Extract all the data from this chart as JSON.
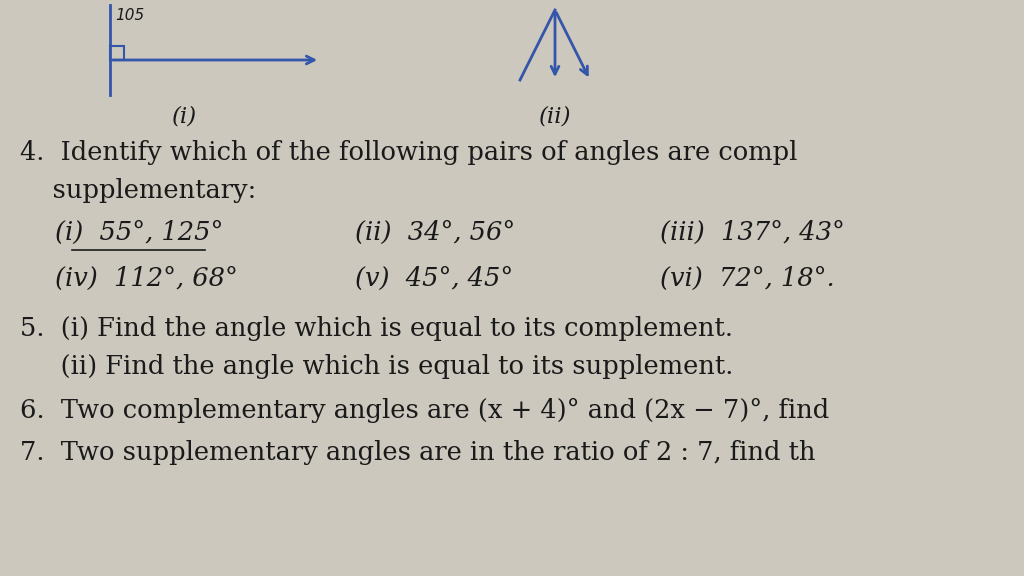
{
  "bg_color": "#ccc8be",
  "text_color": "#1a1a1a",
  "blue_color": "#3355aa",
  "fig_width": 10.24,
  "fig_height": 5.76,
  "label_i": "(i)",
  "label_ii": "(ii)",
  "q4_line1": "4.  Identify which of the following pairs of angles are compl",
  "q4_line2": "    supplementary:",
  "q4_col1_row1": "(i)  55°, 125°",
  "q4_col2_row1": "(ii)  34°, 56°",
  "q4_col3_row1": "(iii)  137°, 43°",
  "q4_col1_row2": "(iv)  112°, 68°",
  "q4_col2_row2": "(v)  45°, 45°",
  "q4_col3_row2": "(vi)  72°, 18°.",
  "q5_line1": "5.  (i) Find the angle which is equal to its complement.",
  "q5_line2": "     (ii) Find the angle which is equal to its supplement.",
  "q6_line": "6.  Two complementary angles are (x + 4)° and (2x − 7)°, find",
  "q7_line": "7.  Two supplementary angles are in the ratio of 2 : 7, find th"
}
